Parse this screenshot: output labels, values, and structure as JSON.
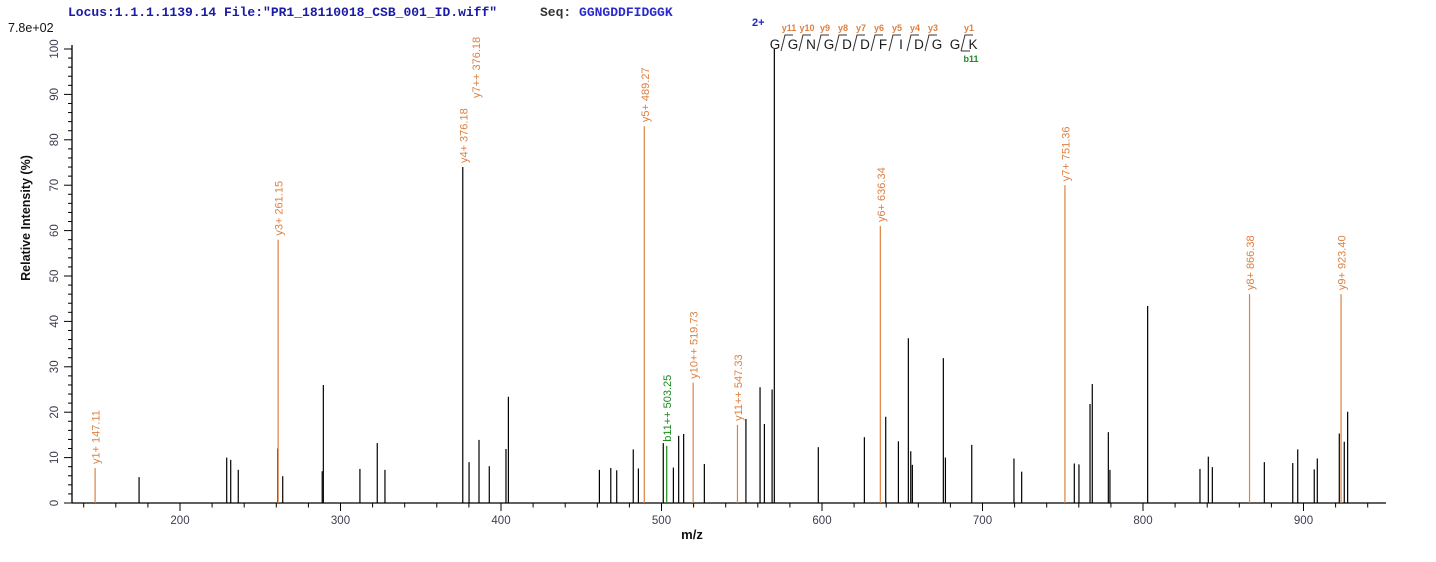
{
  "header": {
    "locus_file": "Locus:1.1.1.1139.14 File:\"PR1_18110018_CSB_001_ID.wiff\"",
    "seq_label": "Seq:",
    "seq_value": "GGNGDDFIDGGK"
  },
  "colors": {
    "header_text": "#1a1aa6",
    "seq_value": "#2a2ad0",
    "y_ion": "#dd8040",
    "b_ion": "#1d8a1d",
    "peak": "#000000",
    "axis": "#000000",
    "tick_label": "#3d3d50",
    "charge_label": "#2222cc",
    "residue_letter": "#1a1a1a"
  },
  "chart_data": {
    "type": "bar",
    "subtype": "mass-spectrum-stick-plot",
    "title": "",
    "xlabel": "m/z",
    "ylabel": "Relative  Intensity (%)",
    "intensity_scale_label": "7.8e+02",
    "x_axis": {
      "min": 132.7,
      "max": 951.4,
      "major_tick_step": 100,
      "minor_tick_step": 20,
      "labeled_ticks": [
        200,
        300,
        400,
        500,
        600,
        700,
        800,
        900
      ],
      "first_minor": 140,
      "last_minor": 940
    },
    "y_axis": {
      "min": 0,
      "max": 100,
      "major_tick_step": 10,
      "minor_tick_step": 2,
      "labeled_ticks": [
        0,
        10,
        20,
        30,
        40,
        50,
        60,
        70,
        80,
        90,
        100
      ]
    },
    "precursor": {
      "charge_label": "2+"
    },
    "annotated_peaks": [
      {
        "mz": 147.11,
        "intensity_pct": 7.7,
        "labels": [
          "y1+ 147.11"
        ],
        "ion": "y",
        "line": "y"
      },
      {
        "mz": 261.15,
        "intensity_pct": 58.0,
        "labels": [
          "y3+ 261.15"
        ],
        "ion": "y",
        "line": "y"
      },
      {
        "mz": 376.18,
        "intensity_pct": 74.0,
        "labels": [
          "y4+ 376.18",
          "y7++ 376.18"
        ],
        "ion": "y",
        "line": "black"
      },
      {
        "mz": 489.27,
        "intensity_pct": 83.0,
        "labels": [
          "y5+ 489.27"
        ],
        "ion": "y",
        "line": "y"
      },
      {
        "mz": 503.25,
        "intensity_pct": 12.6,
        "labels": [
          "b11++ 503.25"
        ],
        "ion": "b",
        "line": "b"
      },
      {
        "mz": 519.73,
        "intensity_pct": 26.5,
        "labels": [
          "y10++ 519.73"
        ],
        "ion": "y",
        "line": "y"
      },
      {
        "mz": 547.33,
        "intensity_pct": 17.2,
        "labels": [
          "y11++ 547.33"
        ],
        "ion": "y",
        "line": "y"
      },
      {
        "mz": 636.34,
        "intensity_pct": 61.0,
        "labels": [
          "y6+ 636.34"
        ],
        "ion": "y",
        "line": "y"
      },
      {
        "mz": 751.36,
        "intensity_pct": 70.0,
        "labels": [
          "y7+ 751.36"
        ],
        "ion": "y",
        "line": "y"
      },
      {
        "mz": 866.38,
        "intensity_pct": 46.0,
        "labels": [
          "y8+ 866.38"
        ],
        "ion": "y",
        "line": "y"
      },
      {
        "mz": 923.4,
        "intensity_pct": 46.0,
        "labels": [
          "y9+ 923.40"
        ],
        "ion": "y",
        "line": "y"
      }
    ],
    "unannotated_peaks": [
      [
        174.5,
        5.7
      ],
      [
        229.1,
        10.0
      ],
      [
        231.6,
        9.5
      ],
      [
        236.3,
        7.3
      ],
      [
        260.9,
        12.0
      ],
      [
        264.0,
        5.9
      ],
      [
        288.6,
        7.0
      ],
      [
        289.3,
        26.0
      ],
      [
        312.1,
        7.5
      ],
      [
        322.9,
        13.2
      ],
      [
        327.7,
        7.3
      ],
      [
        380.1,
        9.0
      ],
      [
        386.3,
        13.9
      ],
      [
        392.7,
        8.1
      ],
      [
        403.1,
        11.9
      ],
      [
        404.6,
        23.4
      ],
      [
        461.3,
        7.3
      ],
      [
        468.4,
        7.7
      ],
      [
        472.1,
        7.2
      ],
      [
        482.4,
        11.8
      ],
      [
        485.6,
        7.6
      ],
      [
        501.1,
        13.2
      ],
      [
        507.4,
        7.8
      ],
      [
        510.7,
        14.8
      ],
      [
        513.8,
        15.2
      ],
      [
        526.7,
        8.6
      ],
      [
        552.6,
        18.5
      ],
      [
        561.4,
        25.5
      ],
      [
        564.1,
        17.4
      ],
      [
        568.9,
        25.0
      ],
      [
        570.3,
        100.0
      ],
      [
        597.7,
        12.3
      ],
      [
        626.4,
        14.5
      ],
      [
        639.7,
        19.0
      ],
      [
        647.6,
        13.6
      ],
      [
        653.8,
        36.3
      ],
      [
        655.3,
        11.4
      ],
      [
        656.3,
        8.4
      ],
      [
        675.6,
        31.9
      ],
      [
        676.9,
        10.0
      ],
      [
        693.3,
        12.8
      ],
      [
        719.6,
        9.8
      ],
      [
        724.4,
        6.9
      ],
      [
        757.2,
        8.7
      ],
      [
        760.1,
        8.5
      ],
      [
        767.0,
        21.8
      ],
      [
        768.4,
        26.2
      ],
      [
        778.4,
        15.6
      ],
      [
        779.4,
        7.3
      ],
      [
        802.9,
        43.4
      ],
      [
        835.5,
        7.5
      ],
      [
        840.7,
        10.2
      ],
      [
        843.2,
        7.9
      ],
      [
        875.6,
        9.0
      ],
      [
        893.3,
        8.8
      ],
      [
        896.4,
        11.8
      ],
      [
        906.7,
        7.4
      ],
      [
        908.6,
        9.8
      ],
      [
        922.3,
        15.3
      ],
      [
        925.4,
        13.5
      ],
      [
        927.5,
        20.1
      ]
    ],
    "sequence_ladder": {
      "residues": [
        "G",
        "G",
        "N",
        "G",
        "D",
        "D",
        "F",
        "I",
        "D",
        "G",
        "G",
        "K"
      ],
      "fragments": [
        {
          "after_residue_index": 0,
          "top_label": "y11"
        },
        {
          "after_residue_index": 1,
          "top_label": "y10"
        },
        {
          "after_residue_index": 2,
          "top_label": "y9"
        },
        {
          "after_residue_index": 3,
          "top_label": "y8"
        },
        {
          "after_residue_index": 4,
          "top_label": "y7"
        },
        {
          "after_residue_index": 5,
          "top_label": "y6"
        },
        {
          "after_residue_index": 6,
          "top_label": "y5"
        },
        {
          "after_residue_index": 7,
          "top_label": "y4"
        },
        {
          "after_residue_index": 8,
          "top_label": "y3"
        },
        {
          "after_residue_index": 10,
          "top_label": "y1",
          "bottom_label": "b11"
        }
      ]
    }
  }
}
